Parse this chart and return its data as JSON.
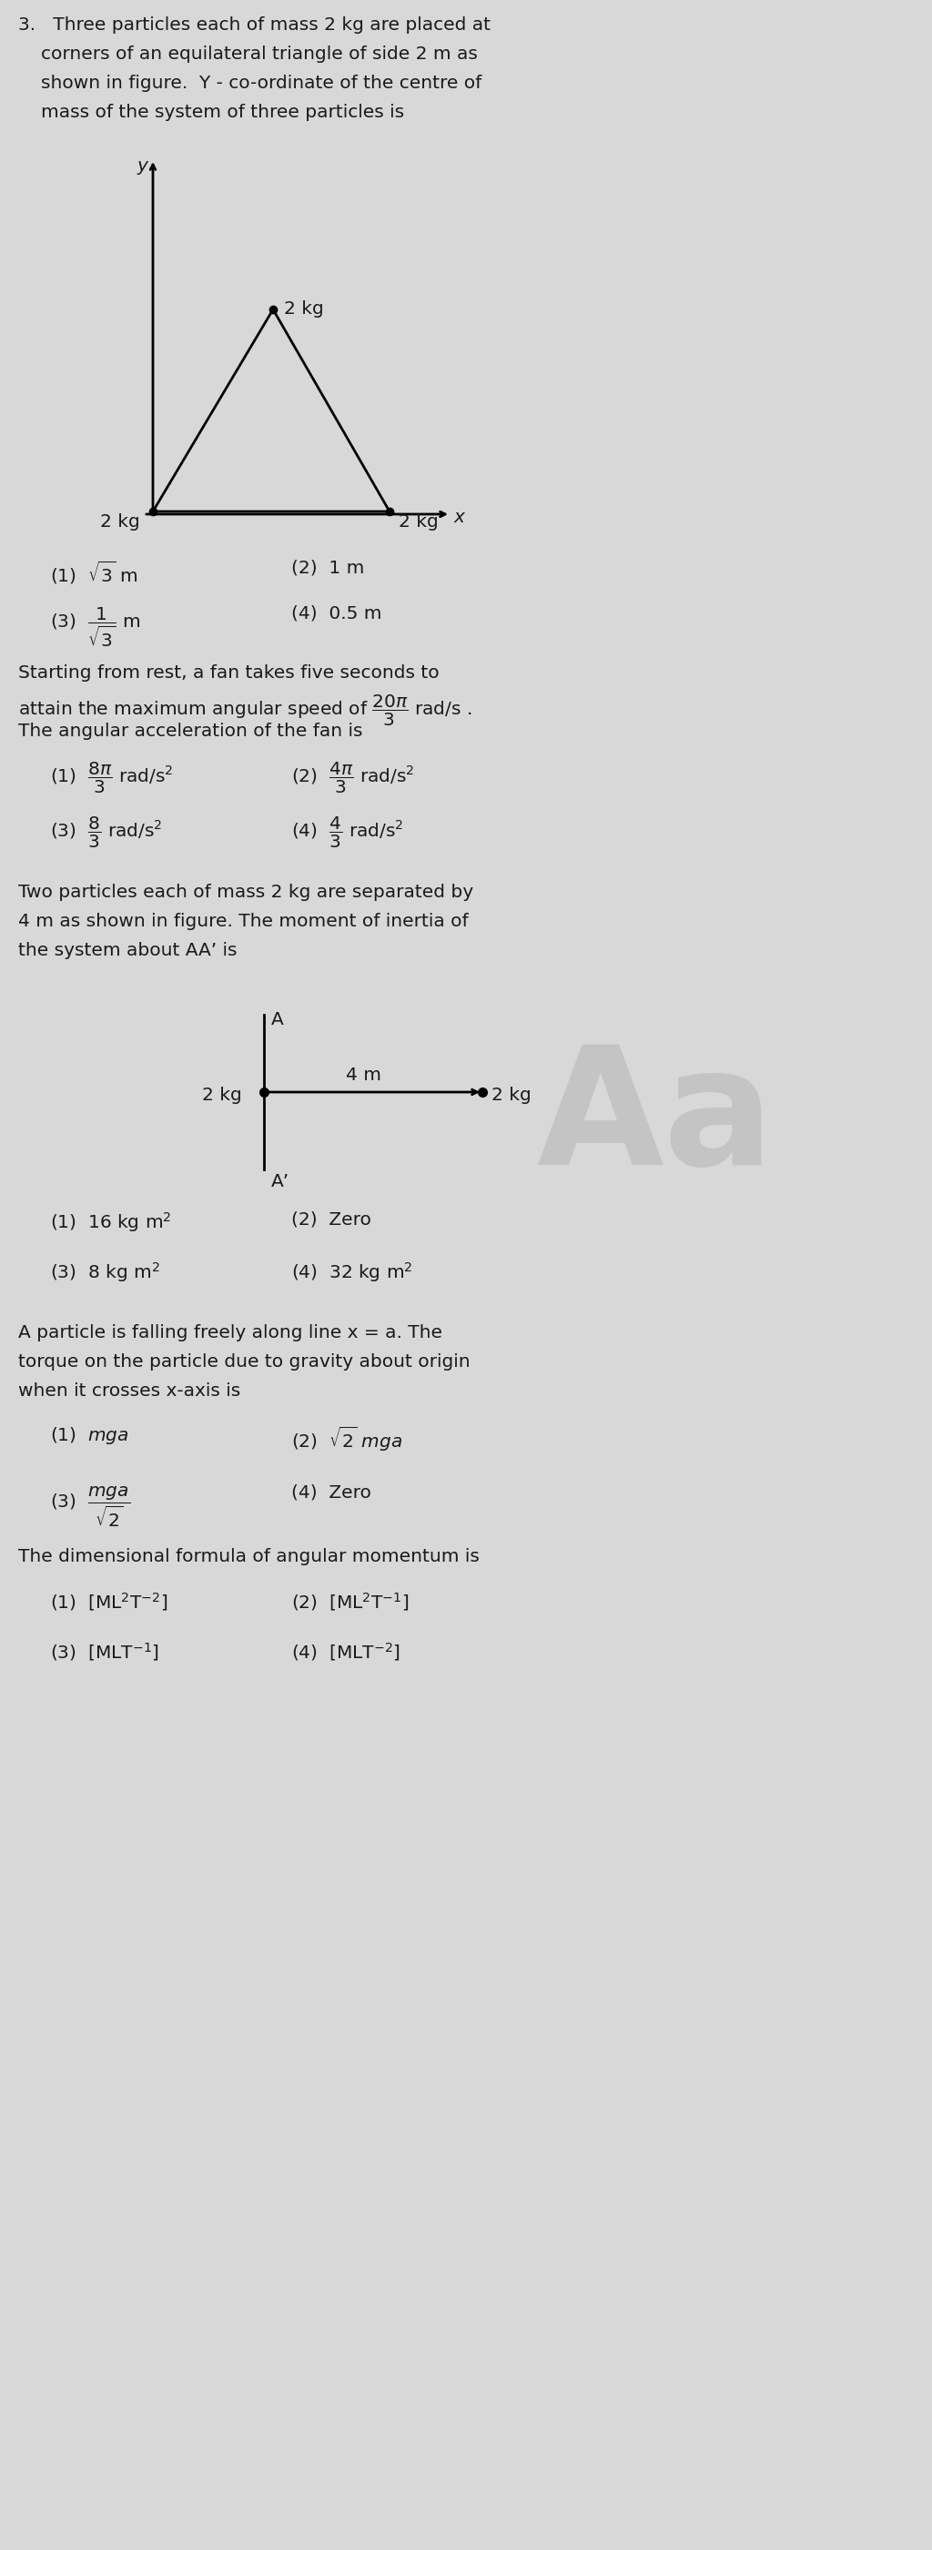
{
  "bg_color": "#d8d8d8",
  "text_color": "#1a1a1a",
  "q3_opts": [
    [
      "(1)  $\\sqrt{3}$ m",
      "(2)  1 m"
    ],
    [
      "(3)  $\\dfrac{1}{\\sqrt{3}}$ m",
      "(4)  0.5 m"
    ]
  ],
  "fan_opts": [
    [
      "(1)  $\\dfrac{8\\pi}{3}$ rad/s$^2$",
      "(2)  $\\dfrac{4\\pi}{3}$ rad/s$^2$"
    ],
    [
      "(3)  $\\dfrac{8}{3}$ rad/s$^2$",
      "(4)  $\\dfrac{4}{3}$ rad/s$^2$"
    ]
  ],
  "two_opts": [
    [
      "(1)  16 kg m$^2$",
      "(2)  Zero"
    ],
    [
      "(3)  8 kg m$^2$",
      "(4)  32 kg m$^2$"
    ]
  ],
  "particle_opts": [
    [
      "(1)  $mga$",
      "(2)  $\\sqrt{2}$ $mga$"
    ],
    [
      "(3)  $\\dfrac{mga}{\\sqrt{2}}$",
      "(4)  Zero"
    ]
  ],
  "dim_opts": [
    [
      "(1)  [ML$^2$T$^{-2}$]",
      "(2)  [ML$^2$T$^{-1}$]"
    ],
    [
      "(3)  [MLT$^{-1}$]",
      "(4)  [MLT$^{-2}$]"
    ]
  ],
  "watermark_color": "#b8b8b8"
}
